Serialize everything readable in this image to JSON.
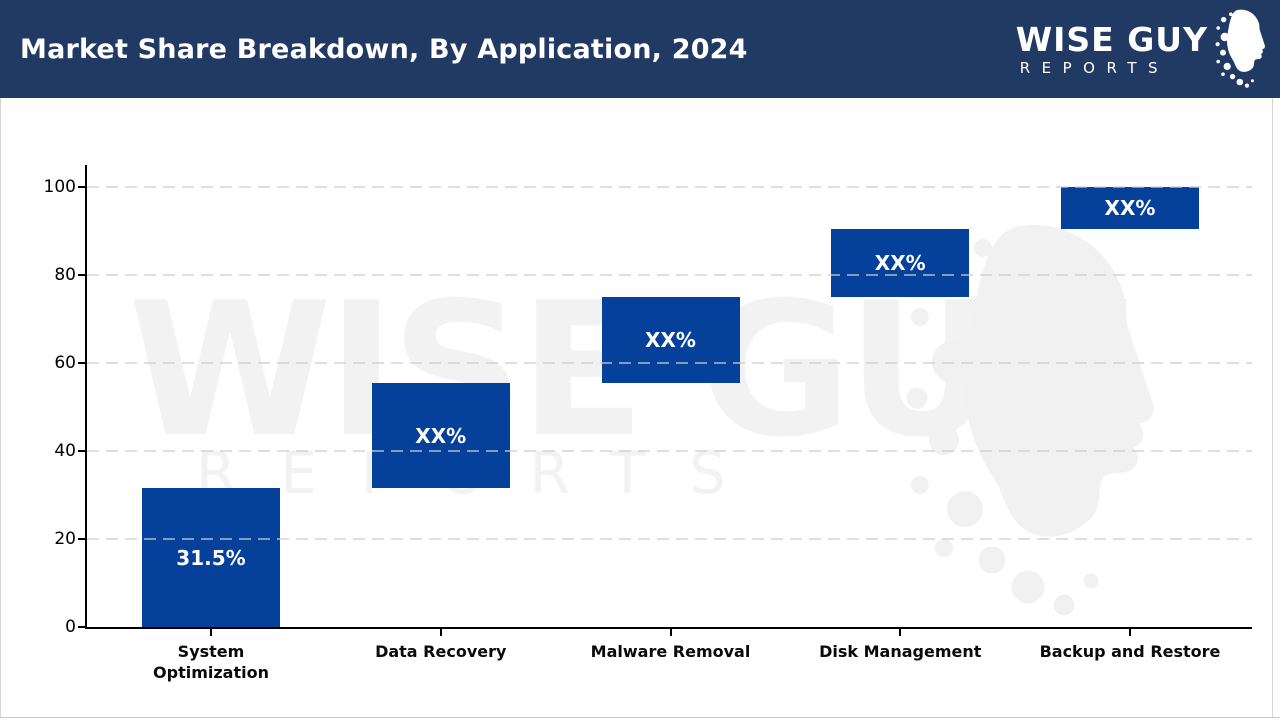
{
  "header": {
    "title": "Market Share Breakdown, By Application, 2024",
    "logo": {
      "wordmark": "WISE GUY",
      "subtitle": "REPORTS"
    }
  },
  "watermark": {
    "wordmark": "WISE GUY",
    "subtitle": "REPORTS"
  },
  "chart_data": {
    "type": "bar",
    "subtype": "waterfall",
    "title": "Market Share Breakdown, By Application, 2024",
    "categories": [
      "System Optimization",
      "Data Recovery",
      "Malware Removal",
      "Disk Management",
      "Backup and Restore"
    ],
    "category_label_lines": [
      [
        "System",
        "Optimization"
      ],
      [
        "Data Recovery"
      ],
      [
        "Malware Removal"
      ],
      [
        "Disk Management"
      ],
      [
        "Backup and Restore"
      ]
    ],
    "segments": [
      {
        "category": "System Optimization",
        "start": 0,
        "end": 31.5,
        "label": "31.5%"
      },
      {
        "category": "Data Recovery",
        "start": 31.5,
        "end": 55.5,
        "label": "XX%"
      },
      {
        "category": "Malware Removal",
        "start": 55.5,
        "end": 75,
        "label": "XX%"
      },
      {
        "category": "Disk Management",
        "start": 75,
        "end": 90.5,
        "label": "XX%"
      },
      {
        "category": "Backup and Restore",
        "start": 90.5,
        "end": 100,
        "label": "XX%"
      }
    ],
    "yticks": [
      0,
      20,
      40,
      60,
      80,
      100
    ],
    "ylim": [
      0,
      105
    ],
    "xlabel": "",
    "ylabel": "",
    "legend": "none",
    "grid": "dashed-horizontal",
    "bar_color": "#05419b",
    "bar_label_color": "#ffffff",
    "axis_color": "#000000",
    "header_color": "#213a64"
  }
}
